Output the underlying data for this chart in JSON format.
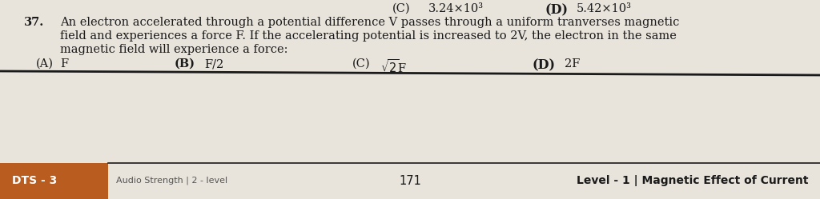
{
  "bg_color": "#d4cfc3",
  "bg_color_bottom": "#e8e4dc",
  "title_num": "37.",
  "question_line1": "An electron accelerated through a potential difference V passes through a uniform tranverses magnetic",
  "question_line2": "field and experiences a force F. If the accelerating potential is increased to 2V, the electron in the same",
  "question_line3": "magnetic field will experience a force:",
  "prev_c": "(C)",
  "prev_c_val": "3.24×10³",
  "prev_d": "(D)",
  "prev_d_val": "5.42×10³",
  "opt_a_label": "(A)",
  "opt_a_text": "F",
  "opt_b_label": "(B)",
  "opt_b_text": "F/2",
  "opt_c_label": "(C)",
  "opt_c_text": "√2F",
  "opt_d_label": "(D)",
  "opt_d_text": "2F",
  "footer_left": "DTS - 3",
  "footer_small": "Audio Strength | 2 - level",
  "footer_center": "171",
  "footer_right": "Level - 1 | Magnetic Effect of Current",
  "separator_color": "#1a1a1a",
  "footer_bar_color": "#b85c20",
  "text_color": "#1a1a1a",
  "footer_text_color": "#1a1a1a",
  "font_size_main": 10.5,
  "font_size_footer": 10.0
}
